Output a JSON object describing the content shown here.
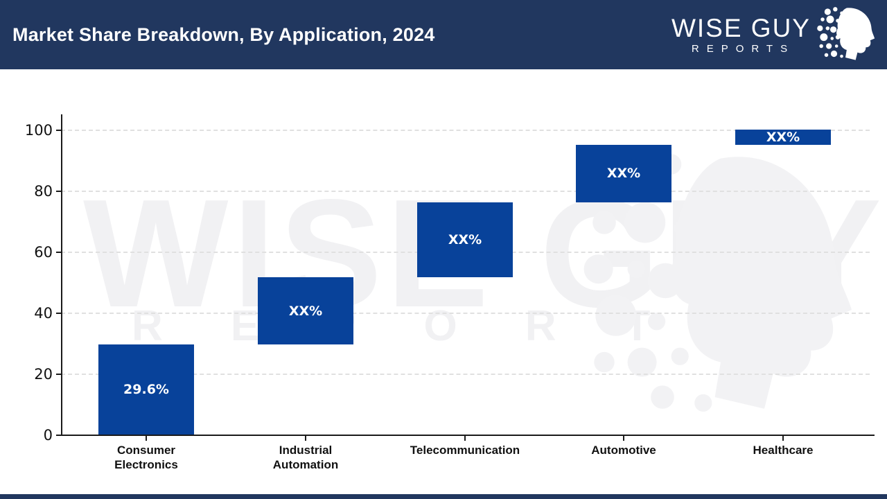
{
  "header": {
    "title": "Market Share Breakdown, By Application, 2024",
    "logo": {
      "line1": "WISE GUY",
      "line2": "REPORTS"
    }
  },
  "watermark": {
    "line1": "WISE GUY",
    "line2": "REPORTS"
  },
  "colors": {
    "header_bg": "#21375f",
    "bar": "#08429a",
    "gridline": "#e0e0e0",
    "axis": "#1a1a1a",
    "bar_label": "#ffffff",
    "watermark": "#f1f1f3",
    "footer_bg": "#21375f"
  },
  "chart_data": {
    "type": "bar",
    "subtype": "waterfall",
    "title": "Market Share Breakdown, By Application, 2024",
    "xlabel": "",
    "ylabel": "",
    "ylim": [
      0,
      100
    ],
    "yticks": [
      0,
      20,
      40,
      60,
      80,
      100
    ],
    "grid": "dashed-horizontal",
    "legend": "none",
    "categories": [
      "Consumer Electronics",
      "Industrial Automation",
      "Telecommunication",
      "Automotive",
      "Healthcare"
    ],
    "category_label_lines": [
      [
        "Consumer",
        "Electronics"
      ],
      [
        "Industrial",
        "Automation"
      ],
      [
        "Telecommunication"
      ],
      [
        "Automotive"
      ],
      [
        "Healthcare"
      ]
    ],
    "segments": [
      {
        "category": "Consumer Electronics",
        "start": 0,
        "end": 29.6,
        "value": 29.6,
        "label": "29.6%"
      },
      {
        "category": "Industrial Automation",
        "start": 29.6,
        "end": 51.5,
        "value": 21.9,
        "label": "XX%"
      },
      {
        "category": "Telecommunication",
        "start": 51.5,
        "end": 76.2,
        "value": 24.7,
        "label": "XX%"
      },
      {
        "category": "Automotive",
        "start": 76.2,
        "end": 95.0,
        "value": 18.8,
        "label": "XX%"
      },
      {
        "category": "Healthcare",
        "start": 95.0,
        "end": 100.0,
        "value": 5.0,
        "label": "XX%"
      }
    ]
  }
}
